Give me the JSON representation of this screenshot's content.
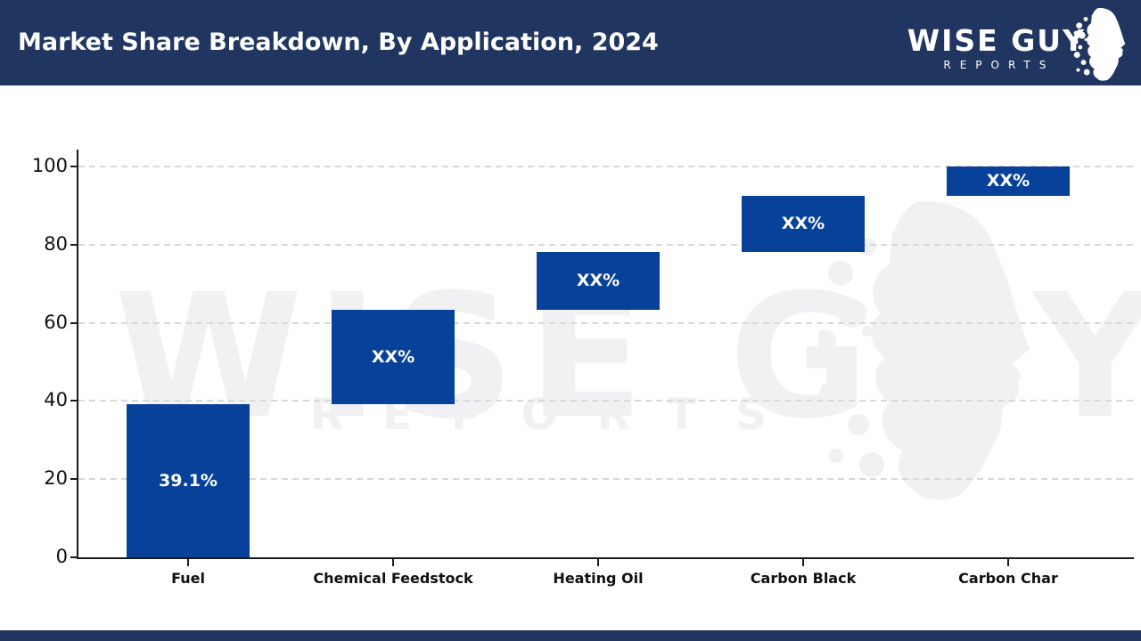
{
  "header": {
    "title": "Market Share Breakdown, By Application, 2024"
  },
  "logo": {
    "line1": "WISE GUY",
    "line2": "REPORTS"
  },
  "watermark": {
    "line1": "WISE GUY",
    "line2": "REPORTS"
  },
  "colors": {
    "header_bg": "#203660",
    "bar": "#08419a",
    "grid": "#d8d8d8",
    "axis": "#1a1a1a",
    "watermark": "#f1f1f3",
    "bar_label": "#ffffff"
  },
  "chart_data": {
    "type": "bar",
    "subtype": "waterfall",
    "title": "Market Share Breakdown, By Application, 2024",
    "categories": [
      "Fuel",
      "Chemical Feedstock",
      "Heating Oil",
      "Carbon Black",
      "Carbon Char"
    ],
    "segments": [
      {
        "category": "Fuel",
        "start": 0,
        "end": 39.1,
        "label": "39.1%"
      },
      {
        "category": "Chemical Feedstock",
        "start": 39.1,
        "end": 63.4,
        "label": "XX%"
      },
      {
        "category": "Heating Oil",
        "start": 63.4,
        "end": 78.2,
        "label": "XX%"
      },
      {
        "category": "Carbon Black",
        "start": 78.2,
        "end": 92.5,
        "label": "XX%"
      },
      {
        "category": "Carbon Char",
        "start": 92.5,
        "end": 100,
        "label": "XX%"
      }
    ],
    "ylim": [
      0,
      100
    ],
    "yticks": [
      0,
      20,
      40,
      60,
      80,
      100
    ],
    "xlabel": "",
    "ylabel": "",
    "grid": "dashed-horizontal",
    "legend": "none"
  }
}
